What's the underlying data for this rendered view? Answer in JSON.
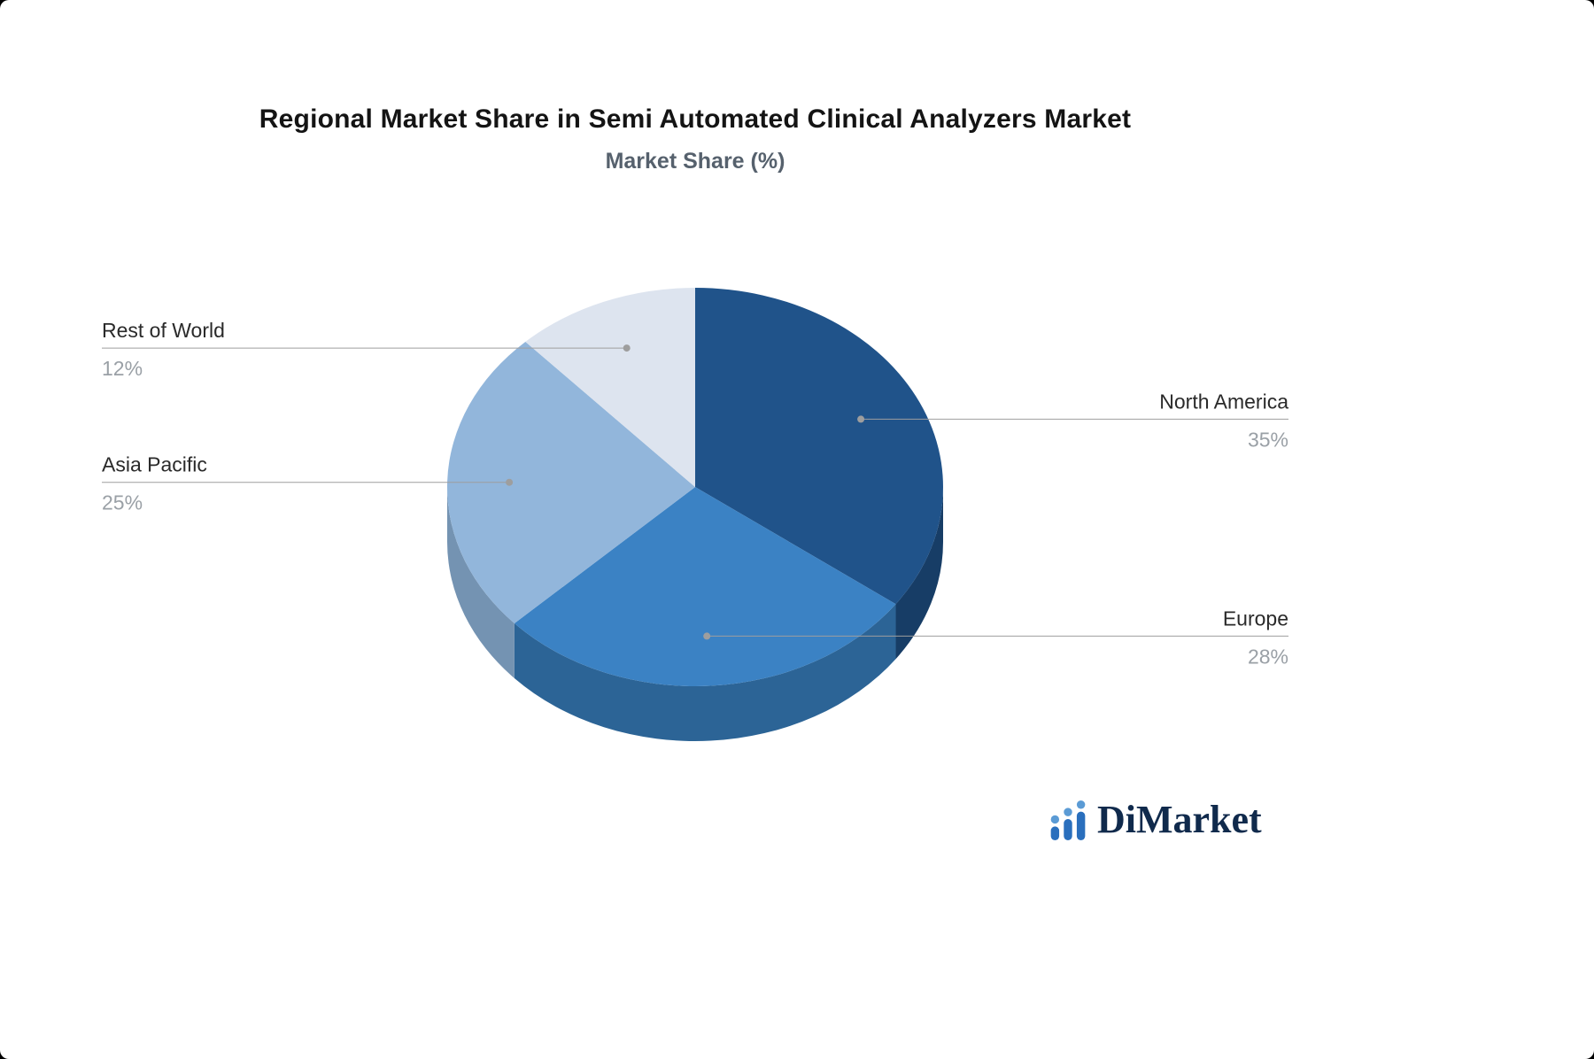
{
  "chart_data": {
    "type": "pie",
    "style": "3d",
    "title": "Regional Market Share in Semi Automated Clinical Analyzers Market",
    "subtitle": "Market Share (%)",
    "unit": "%",
    "start_angle_deg": -90,
    "direction": "clockwise",
    "legend_position": "none",
    "labels_style": "callout-lines",
    "categories": [
      "North America",
      "Europe",
      "Asia Pacific",
      "Rest of World"
    ],
    "values": [
      35,
      28,
      25,
      12
    ],
    "slices": [
      {
        "label": "North America",
        "value": 35,
        "pct_label": "35%",
        "color": "#20538a",
        "side_color": "#173d66"
      },
      {
        "label": "Europe",
        "value": 28,
        "pct_label": "28%",
        "color": "#3b82c4",
        "side_color": "#2c6496"
      },
      {
        "label": "Asia Pacific",
        "value": 25,
        "pct_label": "25%",
        "color": "#92b6db",
        "side_color": "#7493b2"
      },
      {
        "label": "Rest of World",
        "value": 12,
        "pct_label": "12%",
        "color": "#dde4ef",
        "side_color": "#b6c1d1"
      }
    ],
    "label_color": "#2a2a2a",
    "pct_color": "#9aa0a6",
    "leader_color": "#9e9e9e"
  },
  "brand": {
    "name": "DiMarket",
    "icon_color": "#2a6fbd",
    "icon_dot_color": "#5b9bd5",
    "text_color": "#102a4c"
  }
}
